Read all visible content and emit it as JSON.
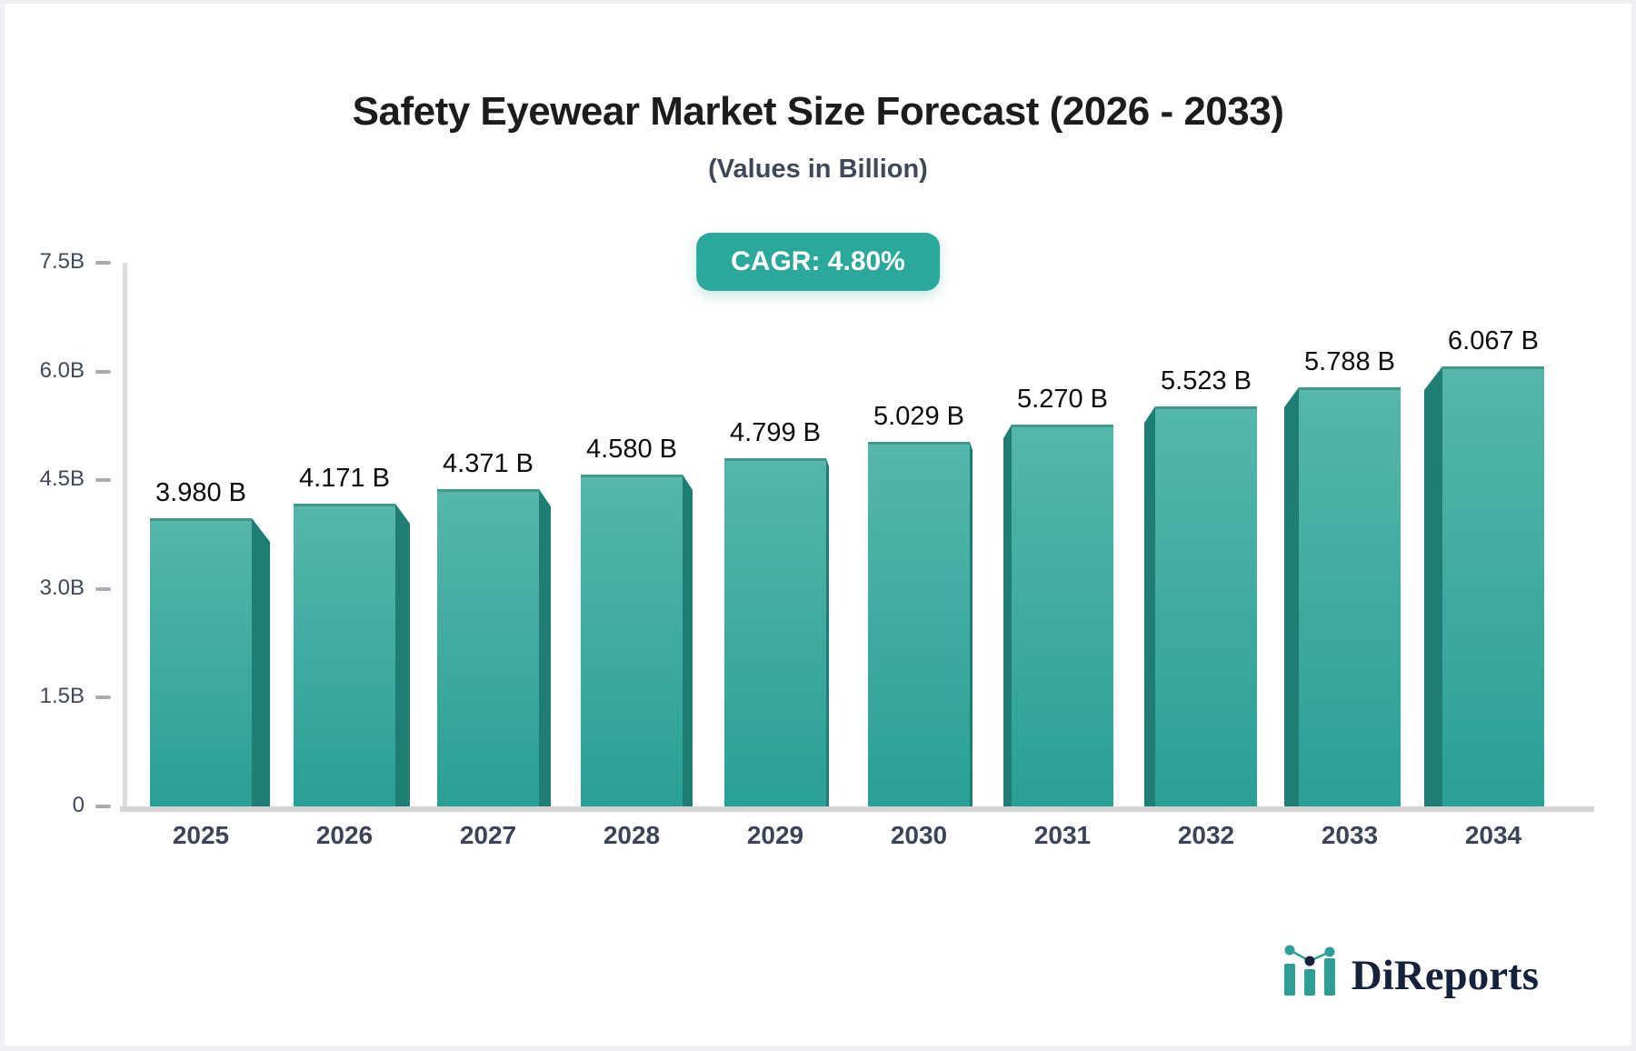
{
  "header": {
    "title": "Safety Eyewear Market Size Forecast (2026 - 2033)",
    "subtitle": "(Values in Billion)"
  },
  "badge": {
    "label": "CAGR: 4.80%"
  },
  "chart_data": {
    "type": "bar",
    "title": "Safety Eyewear Market Size Forecast (2026 - 2033)",
    "subtitle": "(Values in Billion)",
    "cagr_percent": 4.8,
    "categories": [
      "2025",
      "2026",
      "2027",
      "2028",
      "2029",
      "2030",
      "2031",
      "2032",
      "2033",
      "2034"
    ],
    "values": [
      3.98,
      4.171,
      4.371,
      4.58,
      4.799,
      5.029,
      5.27,
      5.523,
      5.788,
      6.067
    ],
    "value_labels": [
      "3.980 B",
      "4.171 B",
      "4.371 B",
      "4.580 B",
      "4.799 B",
      "5.029 B",
      "5.270 B",
      "5.523 B",
      "5.788 B",
      "6.067 B"
    ],
    "xlabel": "",
    "ylabel": "",
    "unit": "Billion",
    "ylim": [
      0,
      7.5
    ],
    "yticks": [
      {
        "value": 7.5,
        "label": "7.5B"
      },
      {
        "value": 6.0,
        "label": "6.0B"
      },
      {
        "value": 4.5,
        "label": "4.5B"
      },
      {
        "value": 3.0,
        "label": "3.0B"
      },
      {
        "value": 1.5,
        "label": "1.5B"
      },
      {
        "value": 0,
        "label": "0"
      }
    ],
    "grid": false,
    "legend": false,
    "bar_style": "3d-teal-gradient"
  },
  "logo": {
    "text": "DiReports",
    "icon": "mini-bar-line-chart-icon"
  },
  "colors": {
    "barTop": "#56b6aa",
    "barBottom": "#29a095",
    "barSide": "#1f7d73",
    "badge": "#2aa89b",
    "axis": "#dbdcde",
    "tick": "#a9adb3",
    "logoNavy": "#15223c",
    "logoTeal": "#2e9e96"
  }
}
